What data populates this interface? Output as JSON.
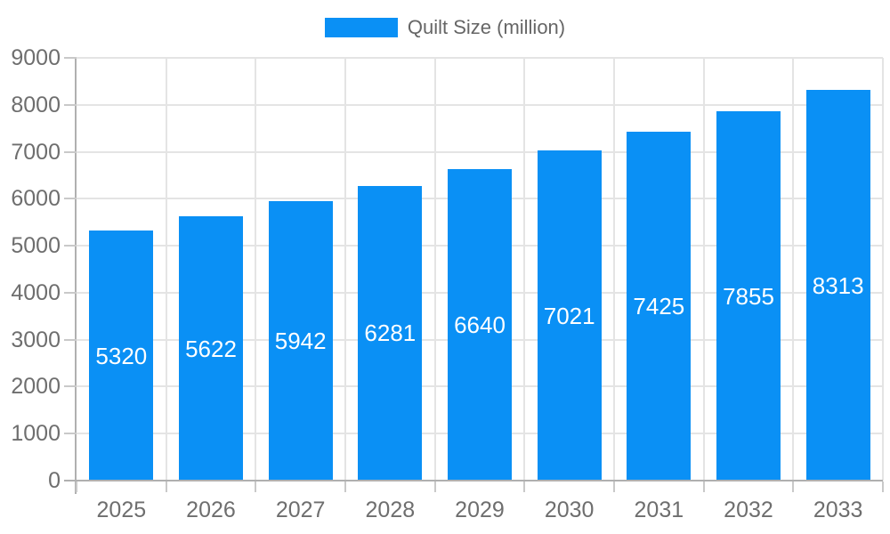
{
  "legend": {
    "label": "Quilt Size (million)"
  },
  "chart_data": {
    "type": "bar",
    "title": "",
    "categories": [
      "2025",
      "2026",
      "2027",
      "2028",
      "2029",
      "2030",
      "2031",
      "2032",
      "2033"
    ],
    "series": [
      {
        "name": "Quilt Size (million)",
        "values": [
          5320,
          5622,
          5942,
          6281,
          6640,
          7021,
          7425,
          7855,
          8313
        ]
      }
    ],
    "xlabel": "",
    "ylabel": "",
    "ylim": [
      0,
      9000
    ],
    "y_tick_step": 1000,
    "grid": true,
    "legend_position": "top-center",
    "value_label_position": "inside-middle",
    "colors": {
      "bar": "#0a90f5",
      "grid_line": "#e4e4e4",
      "axis_line": "#b0b0b0",
      "tick": "#c9c9c9",
      "axis_text": "#6e6e6e",
      "legend_text": "#666666",
      "value_label_text": "#ffffff",
      "background": "#ffffff"
    }
  }
}
